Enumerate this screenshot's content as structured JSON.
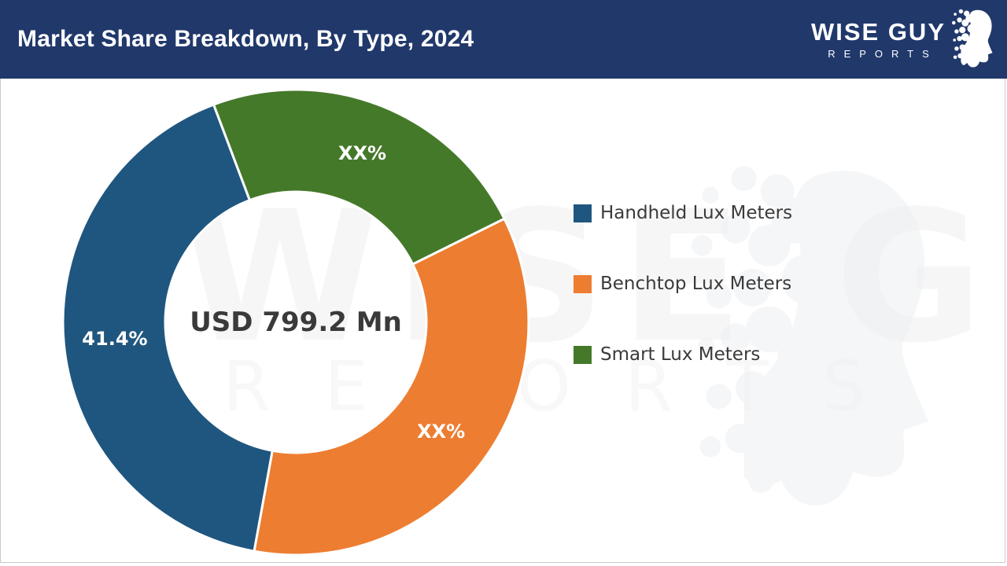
{
  "header": {
    "title": "Market Share Breakdown, By Type, 2024",
    "logo": {
      "name": "WISE GUY",
      "sub": "REPORTS"
    }
  },
  "colors": {
    "header_bg": "#21386B",
    "handheld_blue": "#1F567F",
    "benchtop_orange": "#ED7D31",
    "smart_green": "#45792A",
    "text_dark": "#3A3A3A"
  },
  "chart_data": {
    "type": "pie",
    "subtype": "donut",
    "title": "Market Share Breakdown, By Type, 2024",
    "center_label": "USD 799.2 Mn",
    "start_angle_deg": 190.3,
    "clockwise": true,
    "inner_radius_ratio": 0.56,
    "legend_position": "right",
    "slices": [
      {
        "label": "Handheld Lux Meters",
        "display_value": "41.4%",
        "percent": 41.4,
        "color": "#1F567F"
      },
      {
        "label": "Smart Lux Meters",
        "display_value": "XX%",
        "percent": 23.4,
        "color": "#45792A"
      },
      {
        "label": "Benchtop Lux Meters",
        "display_value": "XX%",
        "percent": 35.2,
        "color": "#ED7D31"
      }
    ]
  },
  "legend": {
    "items": [
      {
        "label": "Handheld Lux Meters",
        "color": "#1F567F"
      },
      {
        "label": "Benchtop Lux Meters",
        "color": "#ED7D31"
      },
      {
        "label": "Smart Lux Meters",
        "color": "#45792A"
      }
    ]
  },
  "watermark": {
    "line1": "WISE GUY",
    "line2": "R E P O R T S"
  }
}
